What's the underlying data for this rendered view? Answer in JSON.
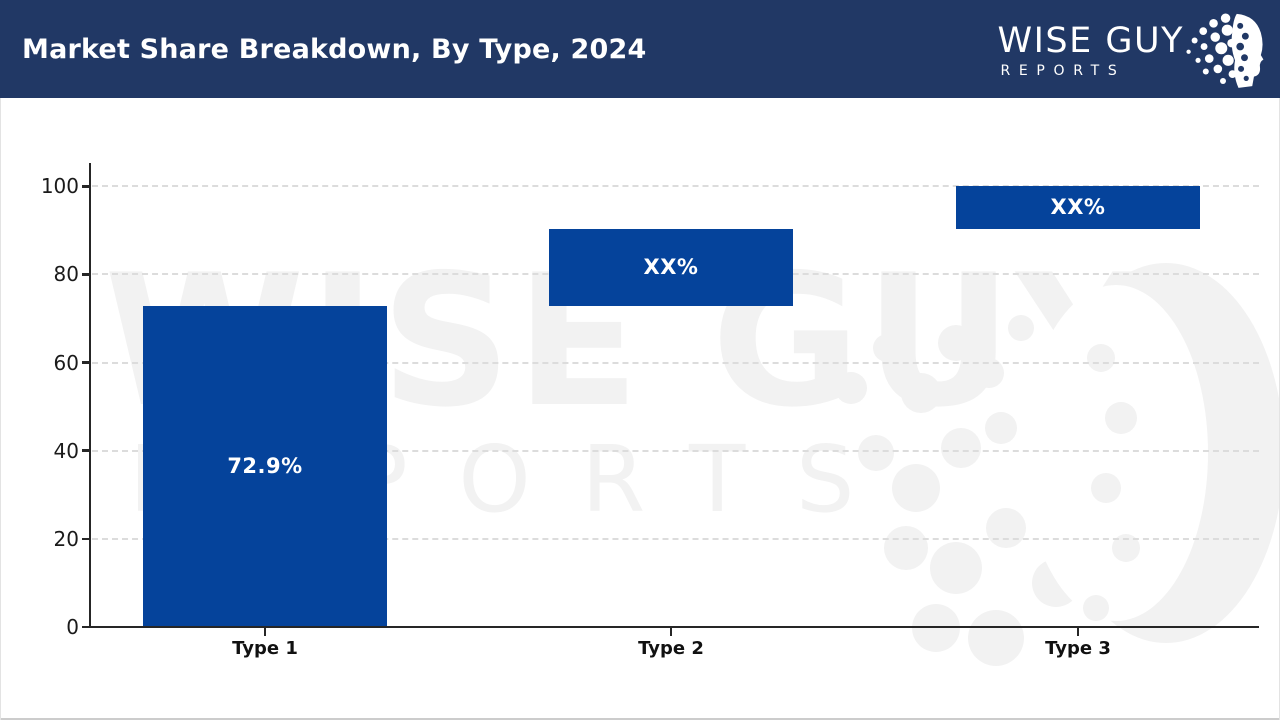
{
  "header": {
    "title": "Market Share Breakdown, By Type, 2024",
    "logo": {
      "name": "WISE GUY",
      "sub": "REPORTS"
    }
  },
  "icons": {
    "logo_head": "dotted-head-profile-icon",
    "watermark_head": "dotted-head-profile-watermark"
  },
  "colors": {
    "header_bg": "#213865",
    "bar_fill": "#05439B",
    "axis": "#262626",
    "tick_label": "#1a1a1a",
    "grid": "#dcdcdc",
    "bar_label": "#ffffff",
    "watermark": "#f2f2f2",
    "page_bg": "#ffffff",
    "bottom_rule": "#cccccc"
  },
  "watermark": {
    "line1": "WISE GUY",
    "line2": "REPORTS"
  },
  "chart_data": {
    "type": "bar",
    "subtype": "waterfall",
    "title": "Market Share Breakdown, By Type, 2024",
    "categories": [
      "Type 1",
      "Type 2",
      "Type 3"
    ],
    "segments": [
      {
        "category": "Type 1",
        "start": 0,
        "end": 72.9,
        "label": "72.9%"
      },
      {
        "category": "Type 2",
        "start": 72.9,
        "end": 90.4,
        "label": "XX%"
      },
      {
        "category": "Type 3",
        "start": 90.4,
        "end": 100,
        "label": "XX%"
      }
    ],
    "values": [
      72.9,
      null,
      null
    ],
    "value_labels": [
      "72.9%",
      "XX%",
      "XX%"
    ],
    "yticks": [
      0,
      20,
      40,
      60,
      80,
      100
    ],
    "ylim": [
      0,
      105
    ],
    "xlabel": "",
    "ylabel": "",
    "grid": "dashed-horizontal",
    "legend": "none",
    "bar_color": "#05439B",
    "units": "percent"
  }
}
